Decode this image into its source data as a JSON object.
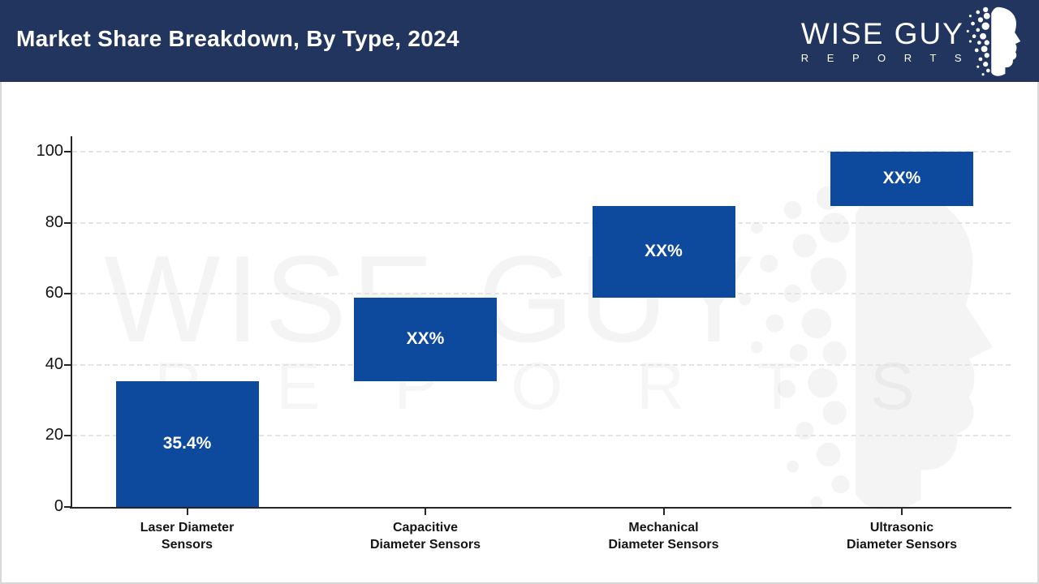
{
  "header": {
    "title": "Market Share Breakdown, By Type, 2024",
    "logo_name": "WISE GUY",
    "logo_subtitle": "R E P O R T S",
    "bg_color": "#21355E"
  },
  "watermark": {
    "line1": "WISE GUY",
    "line2": "R E P O R T S"
  },
  "chart_data": {
    "type": "bar",
    "subtype": "waterfall",
    "title": "Market Share Breakdown, By Type, 2024",
    "categories": [
      {
        "line1": "Laser Diameter",
        "line2": "Sensors"
      },
      {
        "line1": "Capacitive",
        "line2": "Diameter Sensors"
      },
      {
        "line1": "Mechanical",
        "line2": "Diameter Sensors"
      },
      {
        "line1": "Ultrasonic",
        "line2": "Diameter Sensors"
      }
    ],
    "segments": [
      {
        "category": "Laser Diameter Sensors",
        "start": 0,
        "end": 35.4,
        "label": "35.4%"
      },
      {
        "category": "Capacitive Diameter Sensors",
        "start": 35.4,
        "end": 59.0,
        "label": "XX%"
      },
      {
        "category": "Mechanical Diameter Sensors",
        "start": 59.0,
        "end": 84.8,
        "label": "XX%"
      },
      {
        "category": "Ultrasonic Diameter Sensors",
        "start": 84.8,
        "end": 100,
        "label": "XX%"
      }
    ],
    "yticks": [
      0,
      20,
      40,
      60,
      80,
      100
    ],
    "ylim": [
      0,
      104
    ],
    "xlabel": "",
    "ylabel": "",
    "grid": "dashed-horizontal",
    "legend": "none",
    "bar_color": "#0D4A9E",
    "bar_label_color": "#FFFFFF"
  }
}
